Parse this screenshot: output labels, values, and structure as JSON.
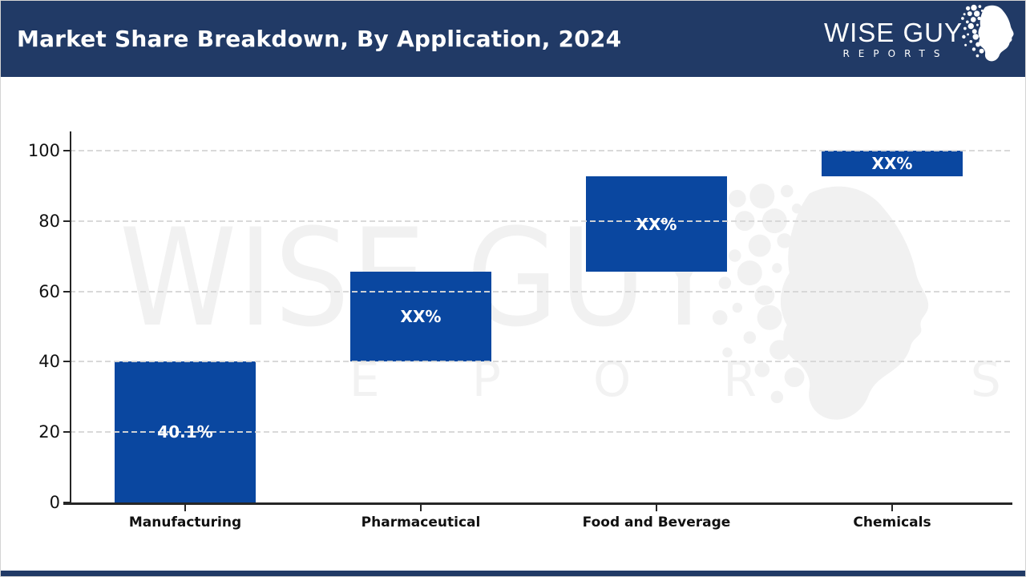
{
  "header": {
    "title": "Market Share Breakdown, By Application, 2024",
    "logo": {
      "name": "WISE GUY",
      "sub": "REPORTS"
    }
  },
  "watermark": {
    "line1": "WISE GUY",
    "line2": "R E P O R T S"
  },
  "chart_data": {
    "type": "bar",
    "variant": "waterfall",
    "title": "Market Share Breakdown, By Application, 2024",
    "categories": [
      "Manufacturing",
      "Pharmaceutical",
      "Food and Beverage",
      "Chemicals"
    ],
    "segments": [
      {
        "category": "Manufacturing",
        "start": 0,
        "end": 40.1,
        "label": "40.1%"
      },
      {
        "category": "Pharmaceutical",
        "start": 40.1,
        "end": 65.6,
        "label": "XX%"
      },
      {
        "category": "Food and Beverage",
        "start": 65.6,
        "end": 92.7,
        "label": "XX%"
      },
      {
        "category": "Chemicals",
        "start": 92.7,
        "end": 100,
        "label": "XX%"
      }
    ],
    "y_ticks": [
      0,
      20,
      40,
      60,
      80,
      100
    ],
    "ylim": [
      0,
      105
    ],
    "xlabel": "",
    "ylabel": "",
    "grid": true,
    "grid_style": "dashed",
    "legend_position": "none",
    "colors": {
      "bar": "#0a47a0",
      "bar_label": "#ffffff",
      "header_bg": "#213a66",
      "grid": "#d9d9d9",
      "axis": "#262626"
    }
  }
}
